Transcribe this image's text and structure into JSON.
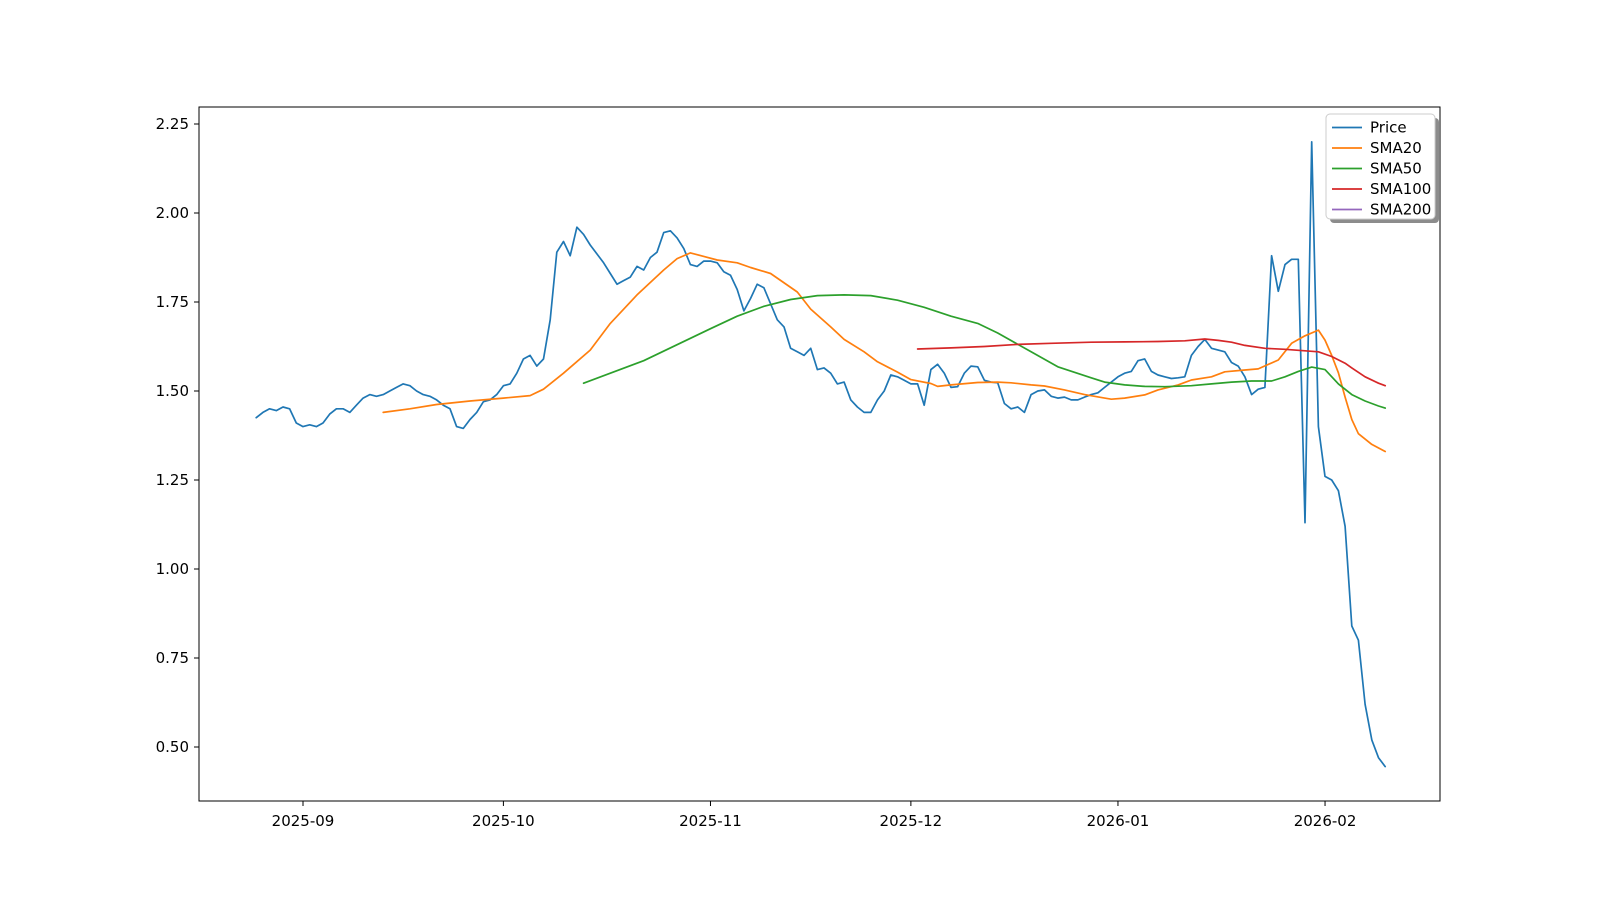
{
  "chart_data": {
    "type": "line",
    "title": "",
    "grid": false,
    "colors": {
      "background": "#ffffff",
      "axis": "#000000",
      "price": "#1f77b4",
      "sma20": "#ff7f0e",
      "sma50": "#2ca02c",
      "sma100": "#d62728",
      "sma200": "#9467bd",
      "legend_border": "#cccccc",
      "legend_shadow": "#8c8c8c"
    },
    "x_axis": {
      "ticks": [
        {
          "value": "2025-09-01",
          "label": "2025-09"
        },
        {
          "value": "2025-10-01",
          "label": "2025-10"
        },
        {
          "value": "2025-11-01",
          "label": "2025-11"
        },
        {
          "value": "2025-12-01",
          "label": "2025-12"
        },
        {
          "value": "2026-01-01",
          "label": "2026-01"
        },
        {
          "value": "2026-02-01",
          "label": "2026-02"
        }
      ],
      "range": [
        "2025-08-16",
        "2026-02-18"
      ]
    },
    "y_axis": {
      "ticks": [
        {
          "value": 0.5,
          "label": "0.50"
        },
        {
          "value": 0.75,
          "label": "0.75"
        },
        {
          "value": 1.0,
          "label": "1.00"
        },
        {
          "value": 1.25,
          "label": "1.25"
        },
        {
          "value": 1.5,
          "label": "1.50"
        },
        {
          "value": 1.75,
          "label": "1.75"
        },
        {
          "value": 2.0,
          "label": "2.00"
        },
        {
          "value": 2.25,
          "label": "2.25"
        }
      ],
      "range": [
        0.35,
        2.3
      ]
    },
    "legend": {
      "position": "upper right",
      "shadow": true
    },
    "series": [
      {
        "name": "Price",
        "color": "#1f77b4",
        "cadence": "daily",
        "start_date": "2025-08-25",
        "values": [
          1.425,
          1.44,
          1.45,
          1.445,
          1.455,
          1.45,
          1.41,
          1.4,
          1.405,
          1.4,
          1.41,
          1.435,
          1.45,
          1.45,
          1.44,
          1.46,
          1.48,
          1.49,
          1.485,
          1.49,
          1.5,
          1.51,
          1.52,
          1.515,
          1.5,
          1.49,
          1.485,
          1.475,
          1.46,
          1.45,
          1.4,
          1.395,
          1.42,
          1.44,
          1.47,
          1.475,
          1.49,
          1.515,
          1.52,
          1.55,
          1.59,
          1.6,
          1.57,
          1.59,
          1.7,
          1.89,
          1.92,
          1.88,
          1.96,
          1.94,
          1.91,
          1.885,
          1.86,
          1.83,
          1.8,
          1.81,
          1.82,
          1.85,
          1.84,
          1.875,
          1.89,
          1.945,
          1.95,
          1.93,
          1.9,
          1.855,
          1.85,
          1.865,
          1.865,
          1.86,
          1.835,
          1.825,
          1.785,
          1.725,
          1.76,
          1.8,
          1.79,
          1.745,
          1.7,
          1.68,
          1.62,
          1.61,
          1.6,
          1.62,
          1.56,
          1.565,
          1.55,
          1.52,
          1.525,
          1.475,
          1.455,
          1.44,
          1.44,
          1.475,
          1.5,
          1.545,
          1.54,
          1.53,
          1.52,
          1.52,
          1.46,
          1.56,
          1.575,
          1.55,
          1.51,
          1.512,
          1.55,
          1.57,
          1.568,
          1.53,
          1.525,
          1.523,
          1.465,
          1.45,
          1.455,
          1.44,
          1.49,
          1.5,
          1.503,
          1.485,
          1.48,
          1.483,
          1.475,
          1.475,
          1.483,
          1.49,
          1.495,
          1.51,
          1.525,
          1.54,
          1.55,
          1.555,
          1.585,
          1.59,
          1.555,
          1.545,
          1.54,
          1.535,
          1.537,
          1.54,
          1.6,
          1.625,
          1.645,
          1.62,
          1.615,
          1.61,
          1.58,
          1.57,
          1.54,
          1.49,
          1.505,
          1.51,
          1.88,
          1.78,
          1.855,
          1.87,
          1.87,
          1.13,
          2.2,
          1.4,
          1.26,
          1.25,
          1.22,
          1.12,
          0.84,
          0.8,
          0.62,
          0.52,
          0.47,
          0.445
        ]
      },
      {
        "name": "SMA20",
        "color": "#ff7f0e",
        "points": [
          [
            "2025-09-13",
            1.44
          ],
          [
            "2025-09-17",
            1.45
          ],
          [
            "2025-09-21",
            1.462
          ],
          [
            "2025-09-26",
            1.472
          ],
          [
            "2025-10-01",
            1.48
          ],
          [
            "2025-10-05",
            1.487
          ],
          [
            "2025-10-07",
            1.505
          ],
          [
            "2025-10-10",
            1.55
          ],
          [
            "2025-10-14",
            1.615
          ],
          [
            "2025-10-17",
            1.69
          ],
          [
            "2025-10-21",
            1.77
          ],
          [
            "2025-10-25",
            1.84
          ],
          [
            "2025-10-27",
            1.872
          ],
          [
            "2025-10-29",
            1.888
          ],
          [
            "2025-10-31",
            1.878
          ],
          [
            "2025-11-02",
            1.868
          ],
          [
            "2025-11-05",
            1.86
          ],
          [
            "2025-11-07",
            1.847
          ],
          [
            "2025-11-10",
            1.83
          ],
          [
            "2025-11-14",
            1.778
          ],
          [
            "2025-11-16",
            1.73
          ],
          [
            "2025-11-19",
            1.68
          ],
          [
            "2025-11-21",
            1.645
          ],
          [
            "2025-11-24",
            1.61
          ],
          [
            "2025-11-26",
            1.582
          ],
          [
            "2025-11-29",
            1.553
          ],
          [
            "2025-12-01",
            1.532
          ],
          [
            "2025-12-04",
            1.521
          ],
          [
            "2025-12-05",
            1.513
          ],
          [
            "2025-12-07",
            1.517
          ],
          [
            "2025-12-11",
            1.524
          ],
          [
            "2025-12-14",
            1.525
          ],
          [
            "2025-12-16",
            1.523
          ],
          [
            "2025-12-19",
            1.517
          ],
          [
            "2025-12-21",
            1.514
          ],
          [
            "2025-12-24",
            1.503
          ],
          [
            "2025-12-27",
            1.49
          ],
          [
            "2025-12-30",
            1.48
          ],
          [
            "2025-12-31",
            1.477
          ],
          [
            "2026-01-02",
            1.48
          ],
          [
            "2026-01-05",
            1.489
          ],
          [
            "2026-01-07",
            1.503
          ],
          [
            "2026-01-10",
            1.517
          ],
          [
            "2026-01-12",
            1.531
          ],
          [
            "2026-01-15",
            1.54
          ],
          [
            "2026-01-17",
            1.554
          ],
          [
            "2026-01-20",
            1.559
          ],
          [
            "2026-01-22",
            1.562
          ],
          [
            "2026-01-25",
            1.587
          ],
          [
            "2026-01-27",
            1.634
          ],
          [
            "2026-01-29",
            1.655
          ],
          [
            "2026-01-31",
            1.671
          ],
          [
            "2026-02-01",
            1.643
          ],
          [
            "2026-02-02",
            1.6
          ],
          [
            "2026-02-03",
            1.551
          ],
          [
            "2026-02-04",
            1.483
          ],
          [
            "2026-02-05",
            1.42
          ],
          [
            "2026-02-06",
            1.38
          ],
          [
            "2026-02-08",
            1.35
          ],
          [
            "2026-02-10",
            1.33
          ]
        ]
      },
      {
        "name": "SMA50",
        "color": "#2ca02c",
        "points": [
          [
            "2025-10-13",
            1.522
          ],
          [
            "2025-10-17",
            1.55
          ],
          [
            "2025-10-22",
            1.585
          ],
          [
            "2025-10-27",
            1.63
          ],
          [
            "2025-11-01",
            1.675
          ],
          [
            "2025-11-05",
            1.71
          ],
          [
            "2025-11-09",
            1.738
          ],
          [
            "2025-11-13",
            1.757
          ],
          [
            "2025-11-17",
            1.768
          ],
          [
            "2025-11-21",
            1.77
          ],
          [
            "2025-11-25",
            1.768
          ],
          [
            "2025-11-29",
            1.755
          ],
          [
            "2025-12-03",
            1.735
          ],
          [
            "2025-12-07",
            1.71
          ],
          [
            "2025-12-11",
            1.69
          ],
          [
            "2025-12-14",
            1.663
          ],
          [
            "2025-12-19",
            1.61
          ],
          [
            "2025-12-23",
            1.568
          ],
          [
            "2025-12-28",
            1.537
          ],
          [
            "2025-12-30",
            1.525
          ],
          [
            "2026-01-02",
            1.517
          ],
          [
            "2026-01-05",
            1.513
          ],
          [
            "2026-01-08",
            1.512
          ],
          [
            "2026-01-12",
            1.515
          ],
          [
            "2026-01-15",
            1.52
          ],
          [
            "2026-01-18",
            1.525
          ],
          [
            "2026-01-21",
            1.528
          ],
          [
            "2026-01-24",
            1.528
          ],
          [
            "2026-01-26",
            1.54
          ],
          [
            "2026-01-28",
            1.555
          ],
          [
            "2026-01-30",
            1.567
          ],
          [
            "2026-02-01",
            1.56
          ],
          [
            "2026-02-03",
            1.52
          ],
          [
            "2026-02-05",
            1.49
          ],
          [
            "2026-02-07",
            1.472
          ],
          [
            "2026-02-09",
            1.458
          ],
          [
            "2026-02-10",
            1.452
          ]
        ]
      },
      {
        "name": "SMA100",
        "color": "#d62728",
        "points": [
          [
            "2025-12-02",
            1.618
          ],
          [
            "2025-12-07",
            1.621
          ],
          [
            "2025-12-12",
            1.625
          ],
          [
            "2025-12-17",
            1.631
          ],
          [
            "2025-12-22",
            1.634
          ],
          [
            "2025-12-28",
            1.637
          ],
          [
            "2026-01-02",
            1.638
          ],
          [
            "2026-01-07",
            1.639
          ],
          [
            "2026-01-11",
            1.641
          ],
          [
            "2026-01-14",
            1.646
          ],
          [
            "2026-01-16",
            1.642
          ],
          [
            "2026-01-18",
            1.637
          ],
          [
            "2026-01-20",
            1.628
          ],
          [
            "2026-01-23",
            1.62
          ],
          [
            "2026-01-26",
            1.617
          ],
          [
            "2026-01-29",
            1.613
          ],
          [
            "2026-01-31",
            1.61
          ],
          [
            "2026-02-02",
            1.597
          ],
          [
            "2026-02-04",
            1.578
          ],
          [
            "2026-02-05",
            1.565
          ],
          [
            "2026-02-07",
            1.54
          ],
          [
            "2026-02-09",
            1.522
          ],
          [
            "2026-02-10",
            1.515
          ]
        ]
      },
      {
        "name": "SMA200",
        "color": "#9467bd",
        "points": []
      }
    ]
  }
}
